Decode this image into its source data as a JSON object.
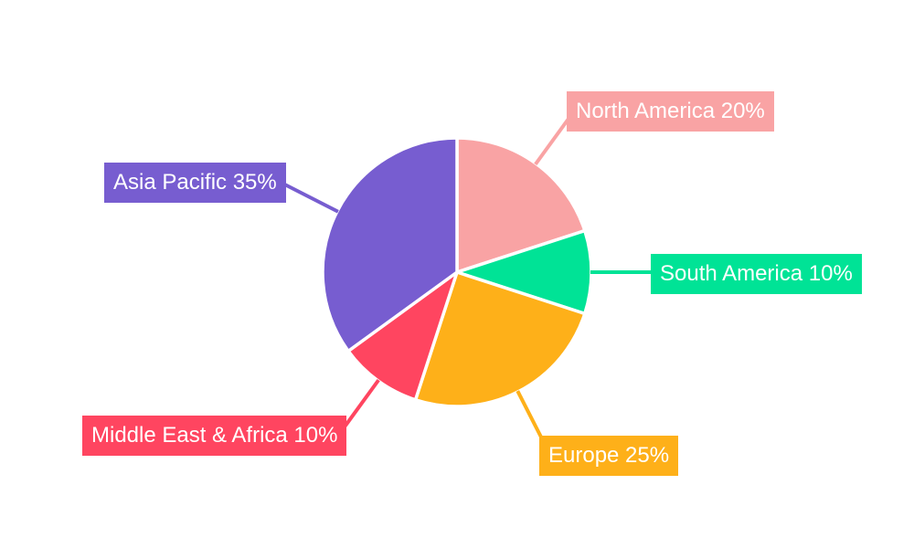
{
  "chart_data": {
    "type": "pie",
    "background": "#FFFFFF",
    "label_text_color": "#FFFFFF",
    "start_angle": "top",
    "direction": "clockwise",
    "legend_position": "callout-labels",
    "slices": [
      {
        "label": "North America",
        "value": 20,
        "display": "North America 20%",
        "color": "#F9A3A4"
      },
      {
        "label": "South America",
        "value": 10,
        "display": "South America 10%",
        "color": "#00E396"
      },
      {
        "label": "Europe",
        "value": 25,
        "display": "Europe 25%",
        "color": "#FEB019"
      },
      {
        "label": "Middle East & Africa",
        "value": 10,
        "display": "Middle East & Africa 10%",
        "color": "#FF4560"
      },
      {
        "label": "Asia Pacific",
        "value": 35,
        "display": "Asia Pacific 35%",
        "color": "#775DD0"
      }
    ]
  }
}
